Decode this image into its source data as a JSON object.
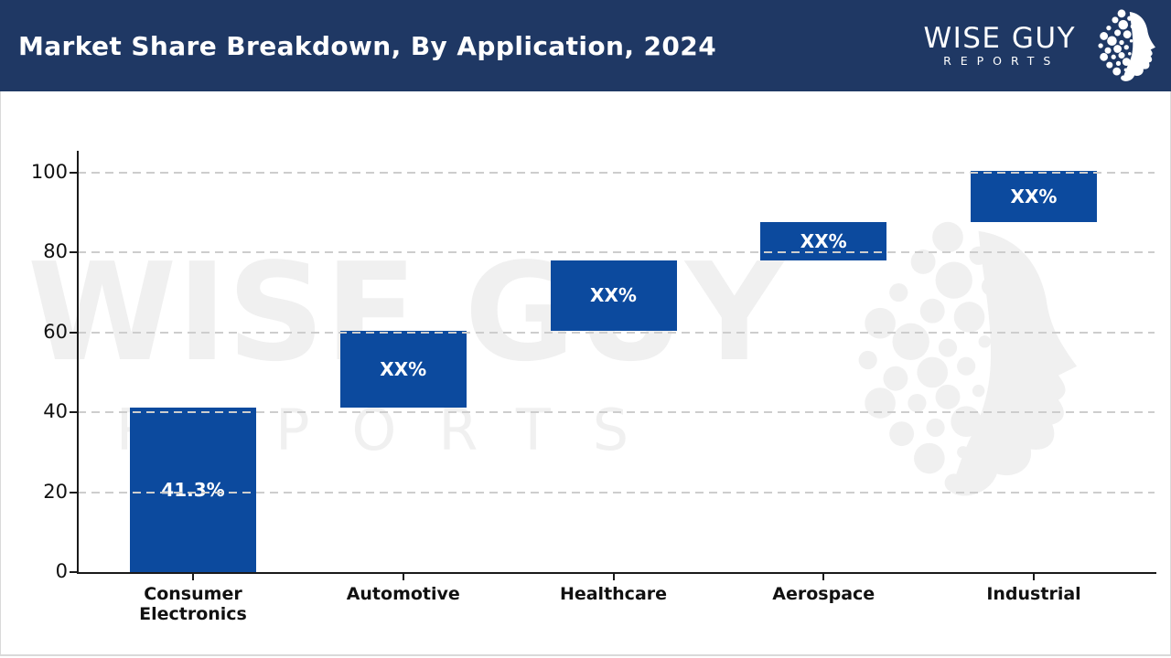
{
  "header": {
    "title": "Market Share Breakdown, By Application, 2024",
    "bg_color": "#1f3864",
    "logo": {
      "name": "WISE GUY",
      "tagline": "REPORTS"
    }
  },
  "watermark": {
    "name": "WISE GUY",
    "tagline": "REPORTS"
  },
  "chart_data": {
    "type": "bar",
    "subtype": "cumulative-waterfall",
    "title": "Market Share Breakdown, By Application, 2024",
    "categories": [
      "Consumer Electronics",
      "Automotive",
      "Healthcare",
      "Aerospace",
      "Industrial"
    ],
    "segments": [
      {
        "category": "Consumer Electronics",
        "start": 0,
        "end": 41.3,
        "label": "41.3%"
      },
      {
        "category": "Automotive",
        "start": 41.3,
        "end": 60.4,
        "label": "XX%"
      },
      {
        "category": "Healthcare",
        "start": 60.4,
        "end": 78.1,
        "label": "XX%"
      },
      {
        "category": "Aerospace",
        "start": 78.1,
        "end": 87.6,
        "label": "XX%"
      },
      {
        "category": "Industrial",
        "start": 87.6,
        "end": 100.4,
        "label": "XX%"
      }
    ],
    "bar_labels_shown": [
      "41.3%",
      "XX%",
      "XX%",
      "XX%",
      "XX%"
    ],
    "xlabel": "",
    "ylabel": "",
    "ylim": [
      0,
      100
    ],
    "yticks": [
      0,
      20,
      40,
      60,
      80,
      100
    ],
    "grid": "horizontal dashed lines drawn above bars",
    "legend": "none",
    "bar_color": "#0c4a9e",
    "bar_label_color": "#ffffff",
    "axis_color": "#1a1a1a",
    "grid_color": "#cdcdcd",
    "watermark_color": "#f0f0f0"
  }
}
